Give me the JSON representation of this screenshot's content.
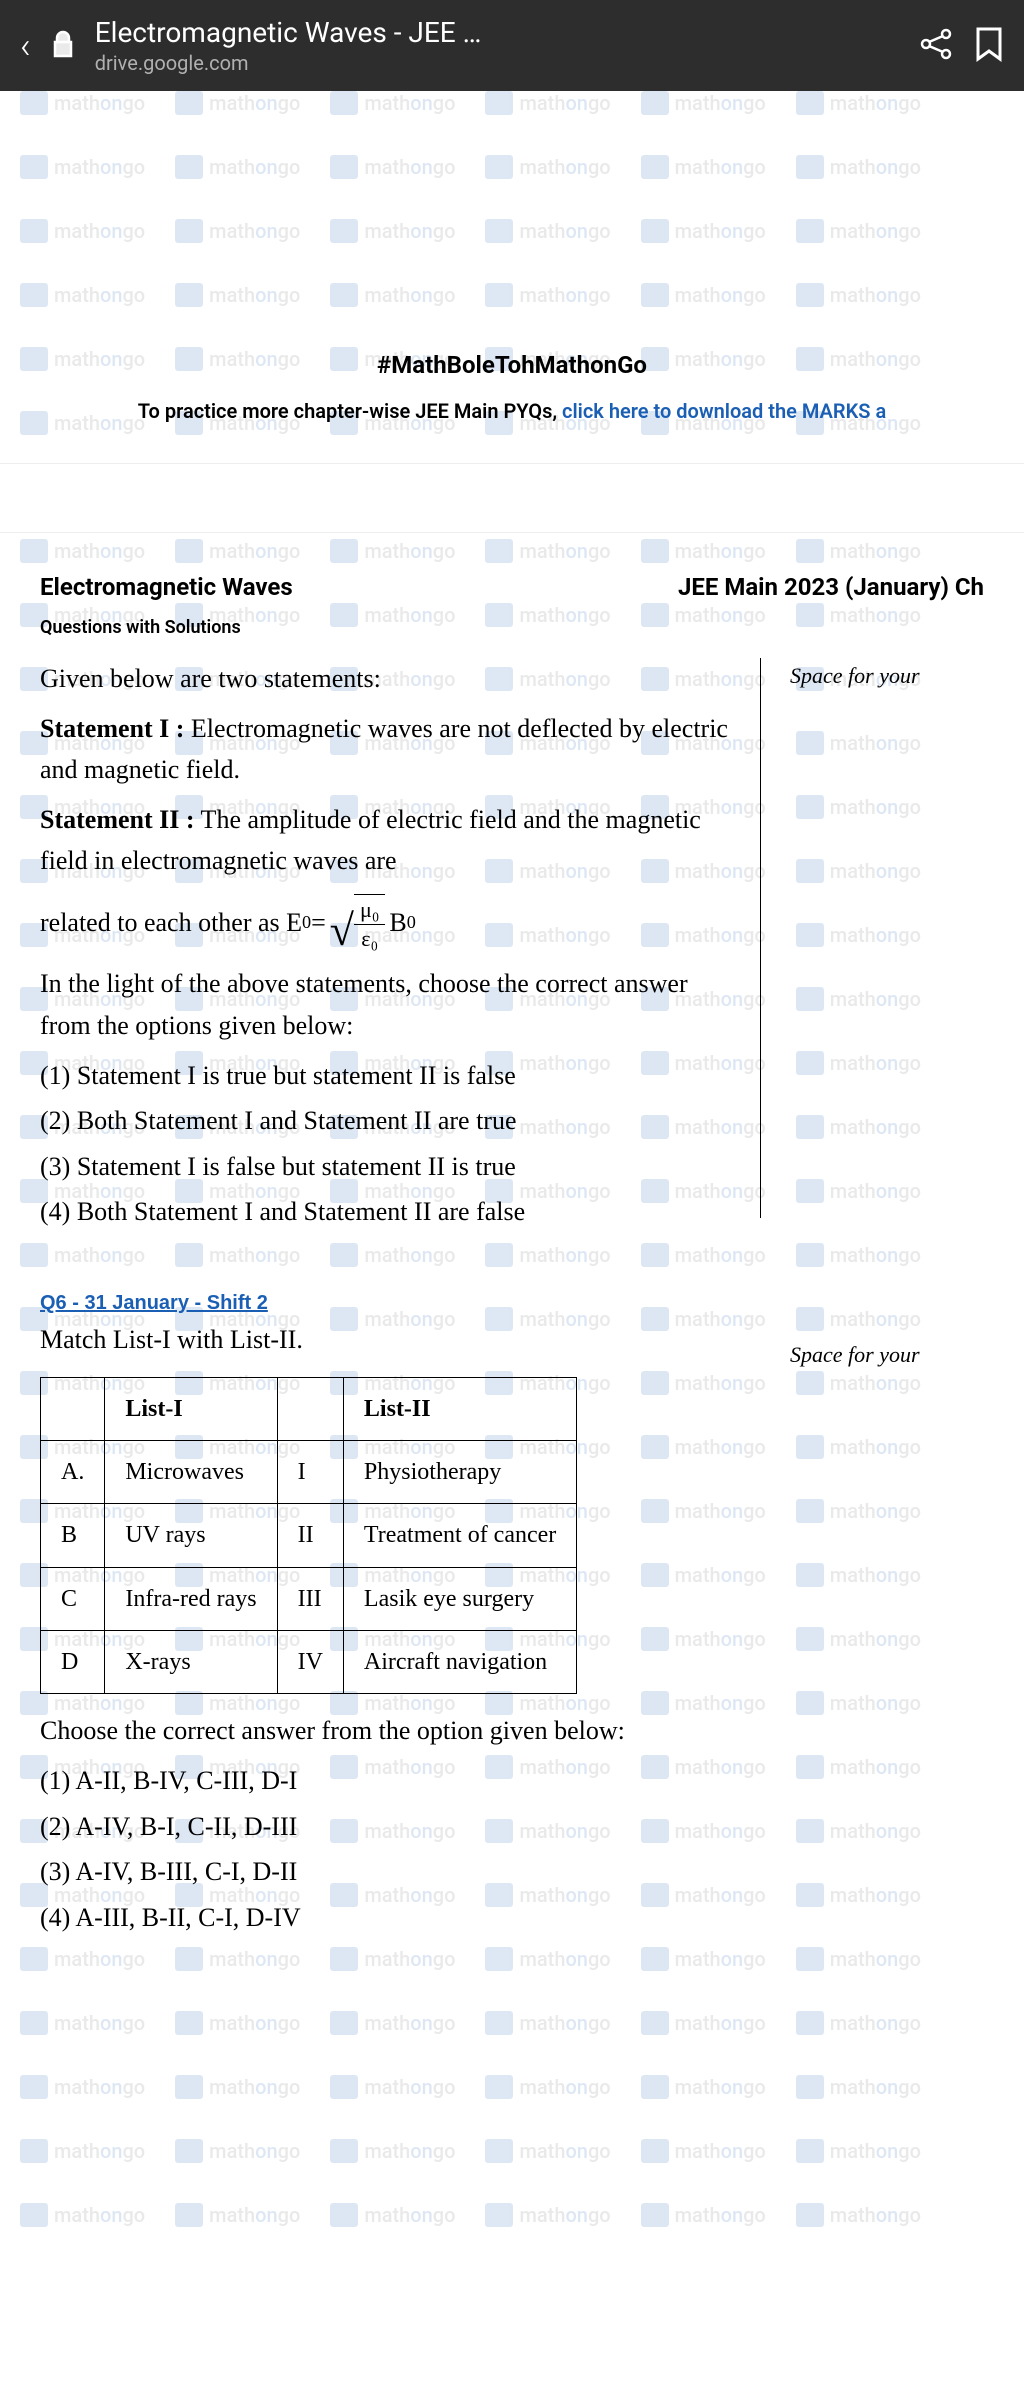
{
  "browser": {
    "page_title": "Electromagnetic Waves - JEE …",
    "url": "drive.google.com"
  },
  "watermark": {
    "text": "mathongo",
    "hashtag": "#MathBoleTohMathonGo"
  },
  "practice": {
    "prefix": "To practice more chapter-wise JEE Main PYQs, ",
    "link": "click here to download the MARKS a"
  },
  "header": {
    "topic": "Electromagnetic Waves",
    "exam": "JEE Main 2023 (January) Ch",
    "subtitle": "Questions with Solutions"
  },
  "q5": {
    "space_label": "Space for your",
    "intro": "Given below are two statements:",
    "s1_label": "Statement I :",
    "s1_text": " Electromagnetic waves are not deflected by electric and magnetic field.",
    "s2_label": "Statement II :",
    "s2_text": " The amplitude of electric field and the magnetic field in electromagnetic waves are",
    "formula_prefix": "related to each other as  E",
    "formula_eq": " = ",
    "formula_num": "μ₀",
    "formula_den": "ε₀",
    "formula_suffix": " B",
    "light": "In the light of the above statements, choose the correct answer from the options given below:",
    "opt1": "(1) Statement I is true but statement II is false",
    "opt2": "(2) Both Statement I and Statement II are true",
    "opt3": "(3) Statement I is false but statement II is true",
    "opt4": "(4) Both Statement I and Statement II are false"
  },
  "q6": {
    "label": "Q6 - 31 January - Shift 2",
    "match": "Match List-I with List-II.",
    "space_label": "Space for your",
    "th1": "List-I",
    "th2": "List-II",
    "rows": {
      "a": {
        "l": "A.",
        "t1": "Microwaves",
        "n": "I",
        "t2": "Physiotherapy"
      },
      "b": {
        "l": "B",
        "t1": "UV rays",
        "n": "II",
        "t2": "Treatment of cancer"
      },
      "c": {
        "l": "C",
        "t1": "Infra-red rays",
        "n": "III",
        "t2": "Lasik eye surgery"
      },
      "d": {
        "l": "D",
        "t1": "X-rays",
        "n": "IV",
        "t2": "Aircraft navigation"
      }
    },
    "choose": "Choose the correct answer from the option given below:",
    "opt1": "(1) A-II, B-IV, C-III, D-I",
    "opt2": "(2) A-IV, B-I, C-II, D-III",
    "opt3": "(3) A-IV, B-III, C-I, D-II",
    "opt4": "(4) A-III, B-II, C-I, D-IV"
  }
}
